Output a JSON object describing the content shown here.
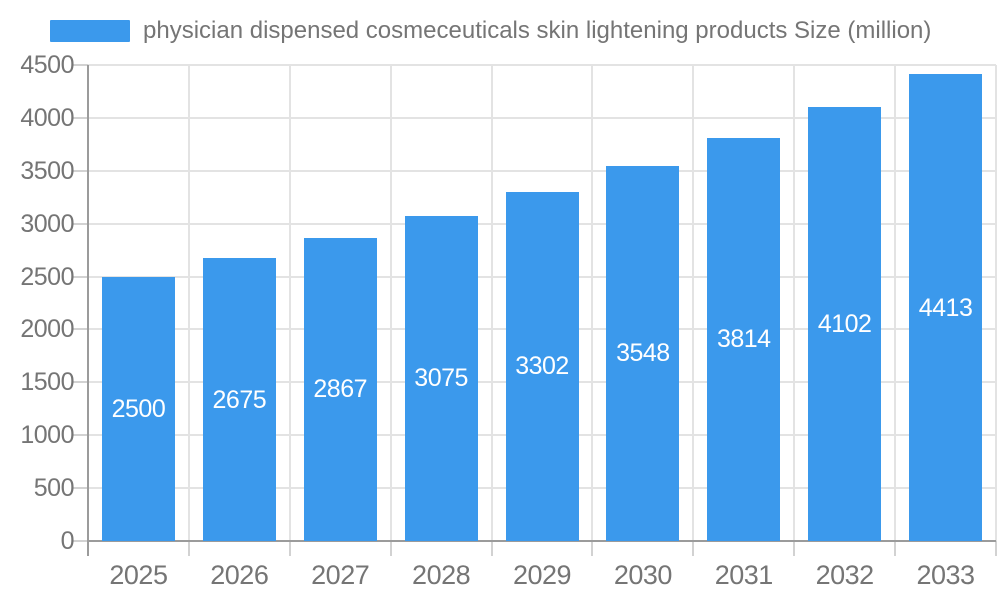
{
  "chart_data": {
    "type": "bar",
    "title": "physician dispensed cosmeceuticals skin lightening products Size (million)",
    "categories": [
      "2025",
      "2026",
      "2027",
      "2028",
      "2029",
      "2030",
      "2031",
      "2032",
      "2033"
    ],
    "values": [
      2500,
      2675,
      2867,
      3075,
      3302,
      3548,
      3814,
      4102,
      4413
    ],
    "xlabel": "",
    "ylabel": "",
    "ylim": [
      0,
      4500
    ],
    "ytick_step": 500,
    "yticks": [
      0,
      500,
      1000,
      1500,
      2000,
      2500,
      3000,
      3500,
      4000,
      4500
    ],
    "grid": true,
    "legend_position": "top-left",
    "colors": {
      "bar": "#3b99ec",
      "axis_text": "#757575",
      "value_label": "#ffffff",
      "gridline": "#e3e3e3",
      "axis_line": "#9b9b9b",
      "tick": "#d2d2d2",
      "background": "#ffffff"
    }
  }
}
